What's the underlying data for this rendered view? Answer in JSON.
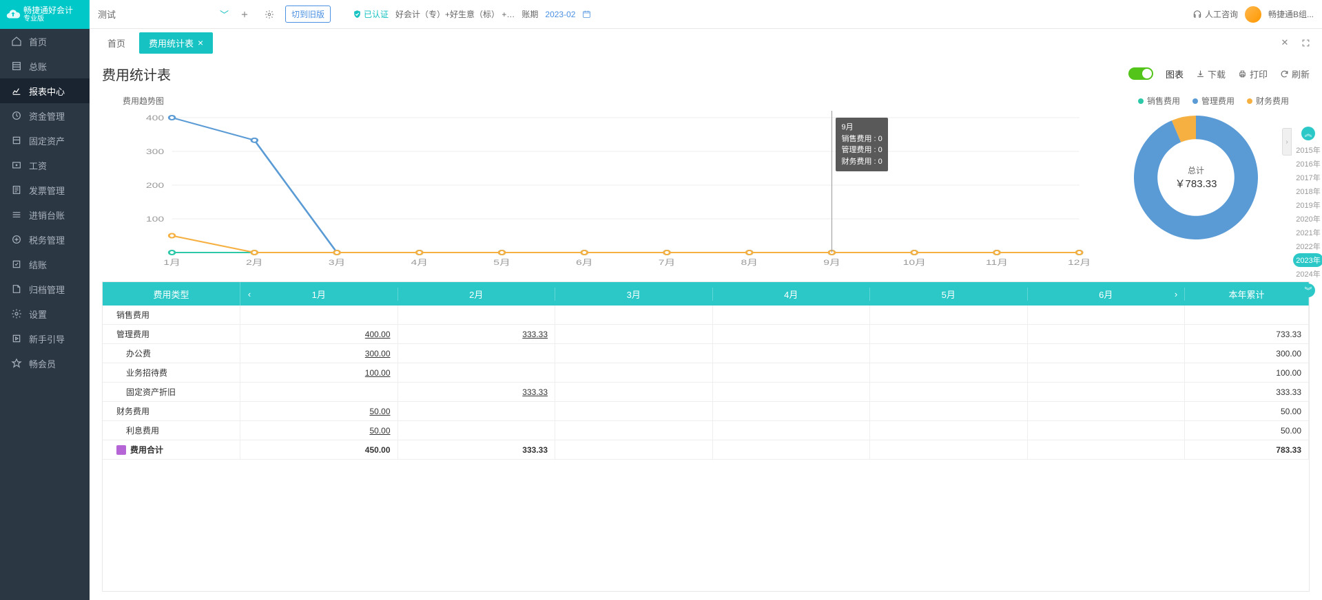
{
  "brand": {
    "name": "畅捷通好会计",
    "edition": "专业版"
  },
  "sidebar": {
    "items": [
      {
        "label": "首页"
      },
      {
        "label": "总账"
      },
      {
        "label": "报表中心"
      },
      {
        "label": "资金管理"
      },
      {
        "label": "固定资产"
      },
      {
        "label": "工资"
      },
      {
        "label": "发票管理"
      },
      {
        "label": "进销台账"
      },
      {
        "label": "税务管理"
      },
      {
        "label": "结账"
      },
      {
        "label": "归档管理"
      },
      {
        "label": "设置"
      },
      {
        "label": "新手引导"
      },
      {
        "label": "畅会员"
      }
    ],
    "active_index": 2
  },
  "topbar": {
    "company": "测试",
    "switch_old": "切到旧版",
    "verified": "已认证",
    "plan": "好会计（专）+好生意（标） +…",
    "period_label": "账期",
    "period_value": "2023-02",
    "support": "人工咨询",
    "user": "畅捷通B组..."
  },
  "tabs": {
    "items": [
      {
        "label": "首页",
        "closable": false
      },
      {
        "label": "费用统计表",
        "closable": true
      }
    ],
    "active_index": 1
  },
  "page": {
    "title": "费用统计表",
    "toggle_label": "图表",
    "actions": {
      "download": "下载",
      "print": "打印",
      "refresh": "刷新"
    }
  },
  "chart": {
    "title": "费用趋势图",
    "type": "line",
    "x_labels": [
      "1月",
      "2月",
      "3月",
      "4月",
      "5月",
      "6月",
      "7月",
      "8月",
      "9月",
      "10月",
      "11月",
      "12月"
    ],
    "y_ticks": [
      100,
      200,
      300,
      400
    ],
    "ylim": [
      0,
      400
    ],
    "series": [
      {
        "name": "销售费用",
        "color": "#2cc8a8",
        "values": [
          0,
          0,
          0,
          0,
          0,
          0,
          0,
          0,
          0,
          0,
          0,
          0
        ]
      },
      {
        "name": "管理费用",
        "color": "#5b9bd5",
        "values": [
          400,
          333,
          0,
          0,
          0,
          0,
          0,
          0,
          0,
          0,
          0,
          0
        ]
      },
      {
        "name": "财务费用",
        "color": "#f5b041",
        "values": [
          50,
          0,
          0,
          0,
          0,
          0,
          0,
          0,
          0,
          0,
          0,
          0
        ]
      }
    ],
    "hover": {
      "index": 8,
      "lines": [
        "9月",
        "销售费用 : 0",
        "管理费用 : 0",
        "财务费用 : 0"
      ]
    },
    "grid_color": "#eeeeee",
    "axis_color": "#cccccc",
    "label_fontsize": 11,
    "background_color": "#ffffff"
  },
  "donut": {
    "type": "donut",
    "center_label": "总计",
    "center_value": "￥783.33",
    "slices": [
      {
        "name": "管理费用",
        "value": 733.33,
        "color": "#5b9bd5"
      },
      {
        "name": "财务费用",
        "value": 50.0,
        "color": "#f5b041"
      },
      {
        "name": "销售费用",
        "value": 0,
        "color": "#2cc8a8"
      }
    ],
    "inner_radius": 0.62
  },
  "legend": [
    {
      "label": "销售费用",
      "color": "#2cc8a8"
    },
    {
      "label": "管理费用",
      "color": "#5b9bd5"
    },
    {
      "label": "财务费用",
      "color": "#f5b041"
    }
  ],
  "table": {
    "header": {
      "type": "费用类型",
      "months": [
        "1月",
        "2月",
        "3月",
        "4月",
        "5月",
        "6月"
      ],
      "total": "本年累计"
    },
    "rows": [
      {
        "label": "销售费用",
        "indent": 1,
        "cells": [
          "",
          "",
          "",
          "",
          "",
          ""
        ],
        "total": ""
      },
      {
        "label": "管理费用",
        "indent": 1,
        "cells": [
          "400.00",
          "333.33",
          "",
          "",
          "",
          ""
        ],
        "total": "733.33",
        "underline": true
      },
      {
        "label": "办公费",
        "indent": 2,
        "cells": [
          "300.00",
          "",
          "",
          "",
          "",
          ""
        ],
        "total": "300.00",
        "underline": true
      },
      {
        "label": "业务招待费",
        "indent": 2,
        "cells": [
          "100.00",
          "",
          "",
          "",
          "",
          ""
        ],
        "total": "100.00",
        "underline": true
      },
      {
        "label": "固定资产折旧",
        "indent": 2,
        "cells": [
          "",
          "333.33",
          "",
          "",
          "",
          ""
        ],
        "total": "333.33",
        "underline": true
      },
      {
        "label": "财务费用",
        "indent": 1,
        "cells": [
          "50.00",
          "",
          "",
          "",
          "",
          ""
        ],
        "total": "50.00",
        "underline": true
      },
      {
        "label": "利息费用",
        "indent": 2,
        "cells": [
          "50.00",
          "",
          "",
          "",
          "",
          ""
        ],
        "total": "50.00",
        "underline": true
      }
    ],
    "sum": {
      "label": "费用合计",
      "cells": [
        "450.00",
        "333.33",
        "",
        "",
        "",
        ""
      ],
      "total": "783.33"
    }
  },
  "year_rail": {
    "years": [
      "2015年",
      "2016年",
      "2017年",
      "2018年",
      "2019年",
      "2020年",
      "2021年",
      "2022年",
      "2023年",
      "2024年"
    ],
    "active": "2023年"
  }
}
